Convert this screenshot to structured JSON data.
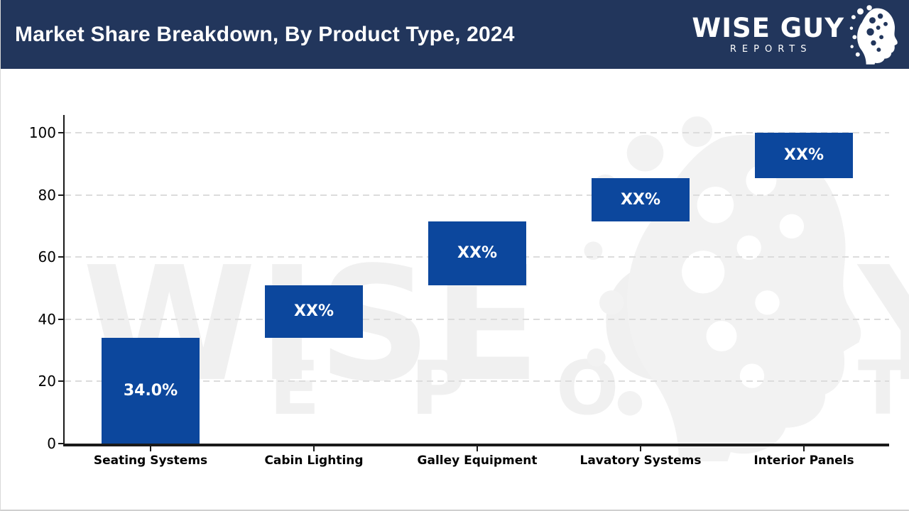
{
  "header": {
    "title": "Market Share Breakdown, By Product Type, 2024",
    "logo": {
      "line1": "WISE GUY",
      "line2": "REPORTS"
    }
  },
  "watermark": {
    "line1": "WISE GUY",
    "line2": "R E P O R T S"
  },
  "colors": {
    "header_bg": "#22365c",
    "bar_blue": "#0c479d",
    "grid_gray": "#dcdcdc",
    "axis_black": "#1a1a1a",
    "watermark_gray": "#f0f0f0",
    "bar_label_white": "#ffffff"
  },
  "chart_data": {
    "type": "bar",
    "variant": "floating-waterfall",
    "title": "Market Share Breakdown, By Product Type, 2024",
    "categories": [
      "Seating Systems",
      "Cabin Lighting",
      "Galley Equipment",
      "Lavatory Systems",
      "Interior Panels"
    ],
    "segments": [
      {
        "category": "Seating Systems",
        "start": 0,
        "end": 34,
        "label": "34.0%"
      },
      {
        "category": "Cabin Lighting",
        "start": 34,
        "end": 51,
        "label": "XX%"
      },
      {
        "category": "Galley Equipment",
        "start": 51,
        "end": 71.5,
        "label": "XX%"
      },
      {
        "category": "Lavatory Systems",
        "start": 71.5,
        "end": 85.4,
        "label": "XX%"
      },
      {
        "category": "Interior Panels",
        "start": 85.4,
        "end": 100,
        "label": "XX%"
      }
    ],
    "ylabel": "",
    "xlabel": "",
    "yticks": [
      0,
      20,
      40,
      60,
      80,
      100
    ],
    "ylim": [
      0,
      105
    ],
    "grid": "horizontal-dashed",
    "legend": false
  }
}
